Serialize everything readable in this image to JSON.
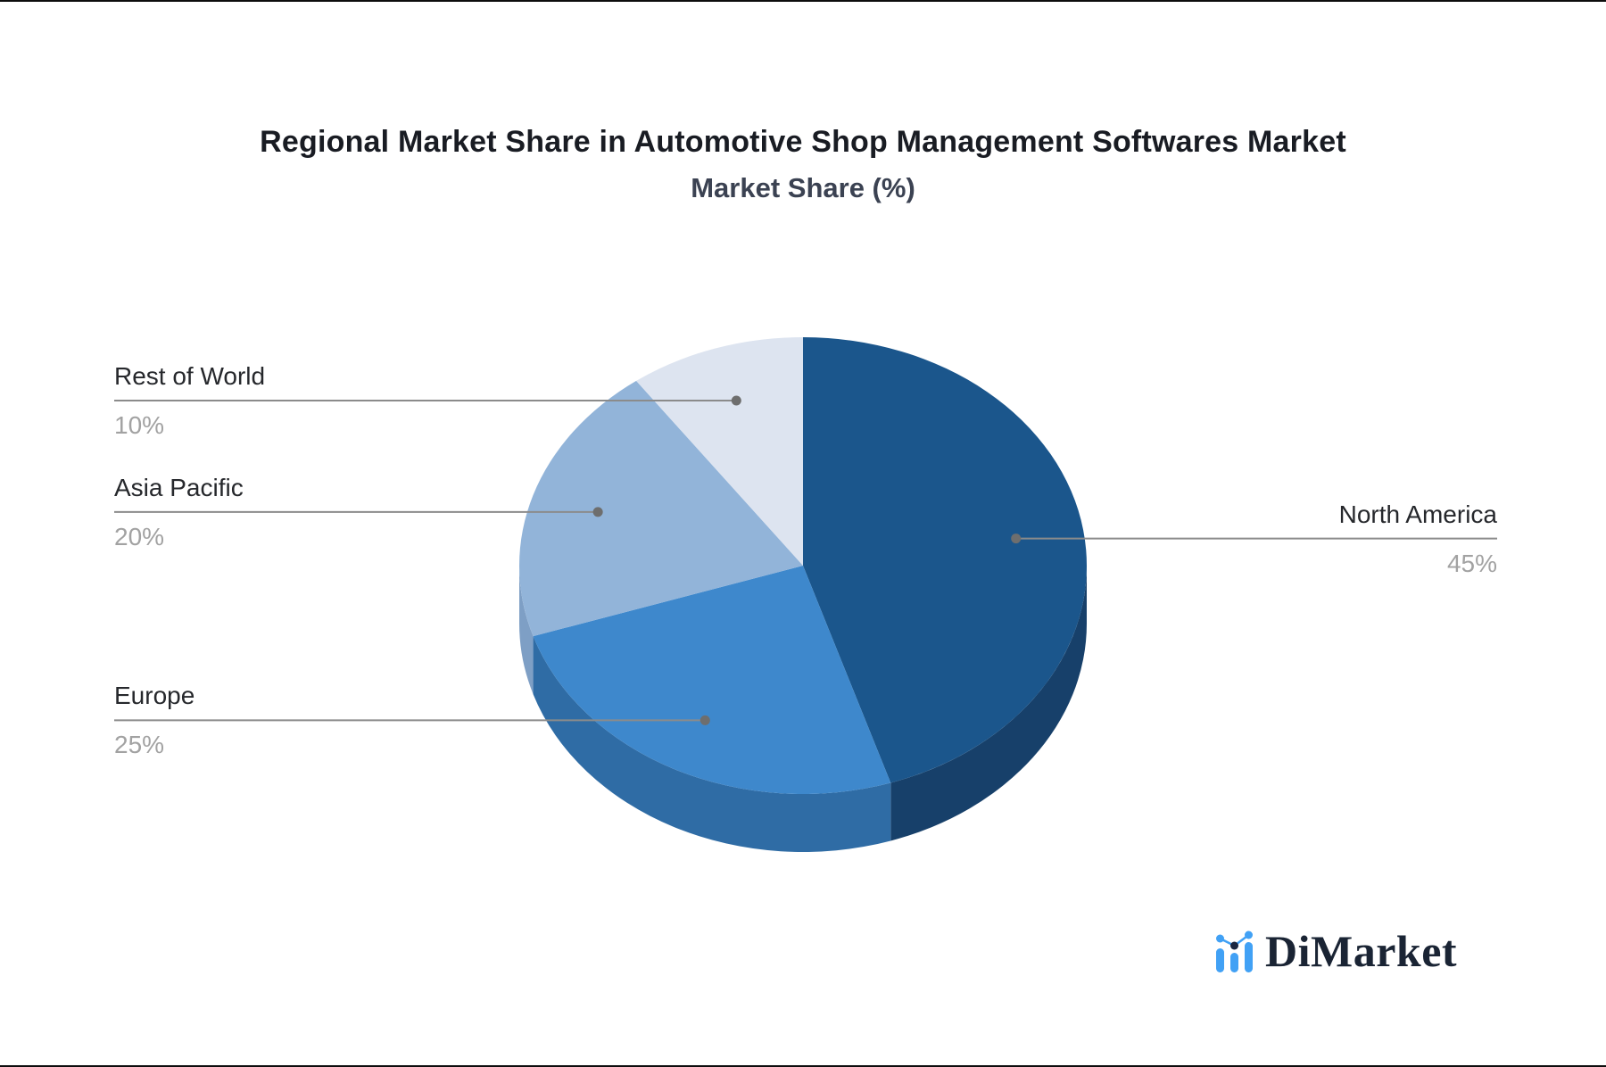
{
  "page": {
    "title": "Regional Market Share in Automotive Shop Management Softwares Market",
    "subtitle": "Market Share (%)"
  },
  "branding": {
    "logo_text": "DiMarket",
    "logo_icon": "bar-line-chart-icon",
    "logo_icon_color": "#41a1f5",
    "logo_text_color": "#1a2434"
  },
  "chart_data": {
    "type": "pie",
    "title": "Regional Market Share in Automotive Shop Management Softwares Market",
    "subtitle": "Market Share (%)",
    "unit": "%",
    "effect": "3d",
    "start_angle_deg": 0,
    "direction": "clockwise",
    "categories": [
      "North America",
      "Europe",
      "Asia Pacific",
      "Rest of World"
    ],
    "values": [
      45,
      25,
      20,
      10
    ],
    "value_labels": [
      "45%",
      "25%",
      "20%",
      "10%"
    ],
    "label_sides": [
      "right",
      "left",
      "left",
      "left"
    ],
    "colors_top": [
      "#1b568c",
      "#3e88cc",
      "#92b4d9",
      "#dde4f0"
    ],
    "colors_side": [
      "#17406a",
      "#2f6ca5",
      "#7e9fc5",
      "#c9d4e6"
    ],
    "leader_line_color": "#8b8b8b",
    "leader_dot_color": "#6e6e6e",
    "label_color": "#26282c",
    "value_color": "#a2a2a2",
    "legend": "none"
  }
}
